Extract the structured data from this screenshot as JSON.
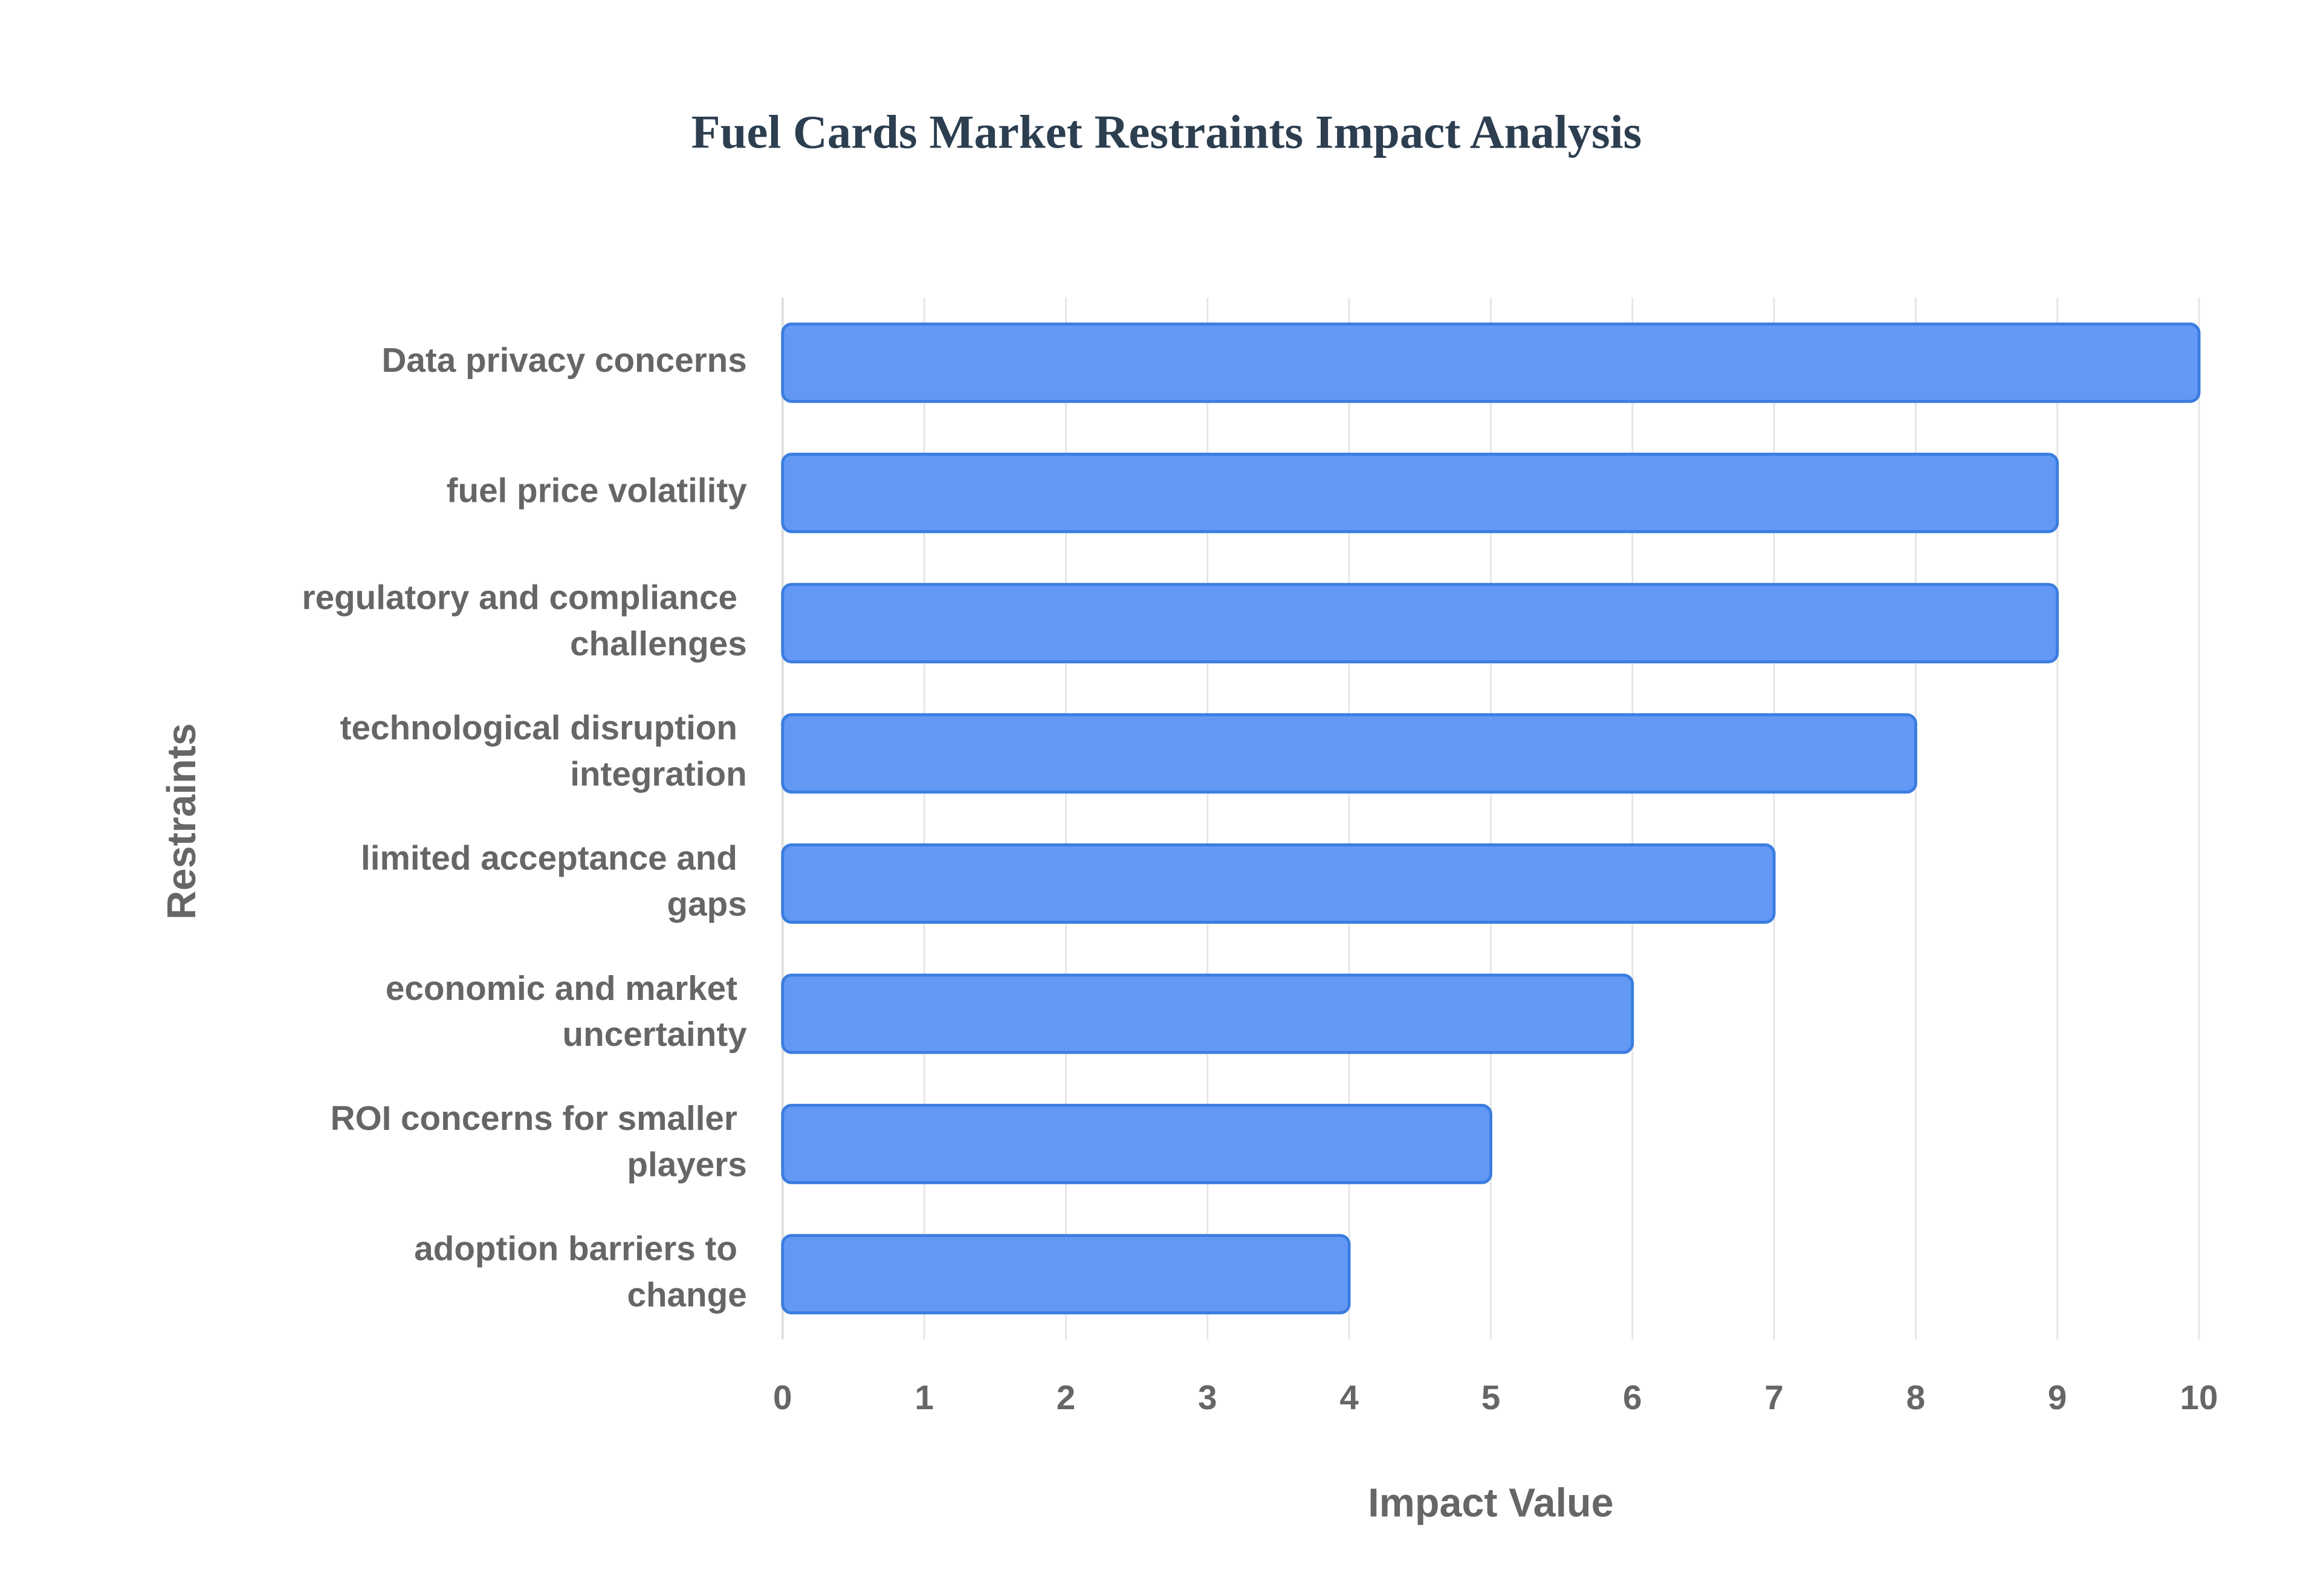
{
  "chart_data": {
    "type": "bar",
    "orientation": "horizontal",
    "title": "Fuel Cards Market Restraints Impact Analysis",
    "x_label": "Impact Value",
    "y_label": "Restraints",
    "categories": [
      "Data privacy concerns",
      "fuel price volatility",
      "regulatory and compliance challenges",
      "technological disruption integration",
      "limited acceptance and gaps",
      "economic and market uncertainty",
      "ROI concerns for smaller players",
      "adoption barriers to change"
    ],
    "values": [
      10,
      9,
      9,
      8,
      7,
      6,
      5,
      4
    ],
    "color": "#6399f5",
    "xlim": [
      0,
      10
    ],
    "xticks": [
      0,
      1,
      2,
      3,
      4,
      5,
      6,
      7,
      8,
      9,
      10
    ],
    "grid": true
  }
}
